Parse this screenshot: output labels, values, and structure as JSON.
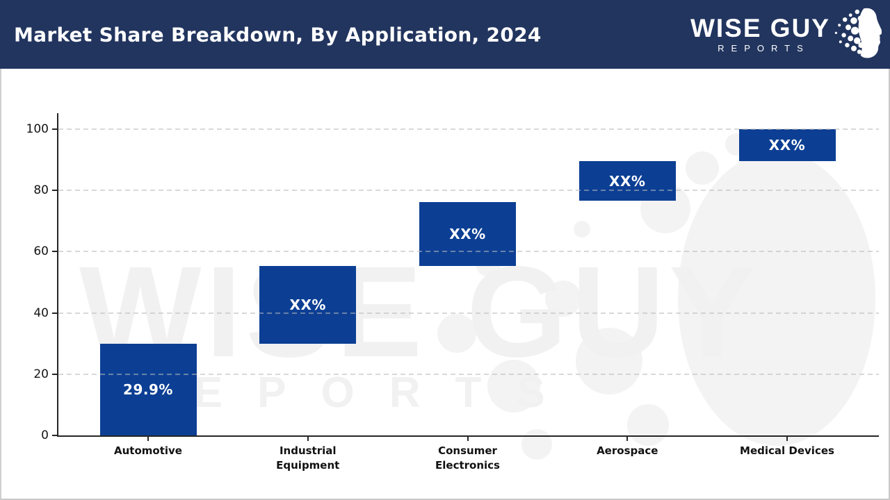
{
  "header": {
    "title": "Market Share Breakdown, By Application, 2024",
    "logo": {
      "line1": "WISE GUY",
      "line2": "REPORTS"
    }
  },
  "watermark": {
    "line1": "WISE GUY",
    "line2": "REPORTS"
  },
  "colors": {
    "header_bg": "#22355f",
    "bar": "#0c3f94",
    "bar_label": "#ffffff",
    "grid": "#d9d9d9",
    "axis": "#262626",
    "watermark": "#f1f1f1"
  },
  "chart_data": {
    "type": "bar",
    "subtype": "floating-waterfall",
    "title": "Market Share Breakdown, By Application, 2024",
    "xlabel": "",
    "ylabel": "",
    "ylim": [
      0,
      105
    ],
    "yticks": [
      0,
      20,
      40,
      60,
      80,
      100
    ],
    "grid": "horizontal-dashed",
    "legend": "none",
    "categories": [
      "Automotive",
      "Industrial\nEquipment",
      "Consumer\nElectronics",
      "Aerospace",
      "Medical Devices"
    ],
    "segments": [
      {
        "category": "Automotive",
        "start": 0,
        "end": 29.9,
        "label": "29.9%"
      },
      {
        "category": "Industrial Equipment",
        "start": 29.9,
        "end": 55.3,
        "label": "XX%"
      },
      {
        "category": "Consumer Electronics",
        "start": 55.4,
        "end": 76.1,
        "label": "XX%"
      },
      {
        "category": "Aerospace",
        "start": 76.6,
        "end": 89.6,
        "label": "XX%"
      },
      {
        "category": "Medical Devices",
        "start": 89.6,
        "end": 100,
        "label": "XX%"
      }
    ]
  }
}
